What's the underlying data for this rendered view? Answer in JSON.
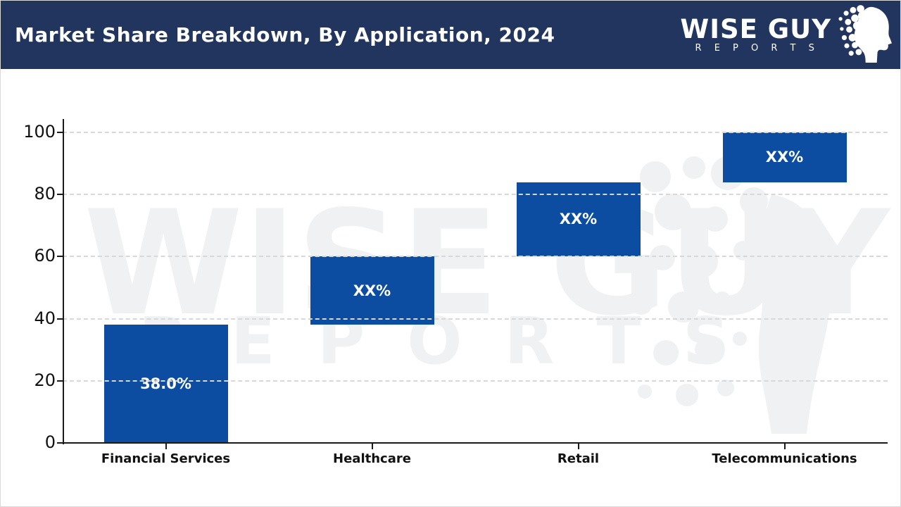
{
  "header": {
    "title": "Market Share Breakdown, By Application, 2024",
    "logo": {
      "line1": "WISE GUY",
      "line2": "R E P O R T S"
    }
  },
  "watermark": {
    "line1": "WISE GUY",
    "line2": "R E P O R T S"
  },
  "chart_data": {
    "type": "bar",
    "subtype": "waterfall-stepped",
    "title": "Market Share Breakdown, By Application, 2024",
    "categories": [
      "Financial Services",
      "Healthcare",
      "Retail",
      "Telecommunications"
    ],
    "segments": [
      {
        "category": "Financial Services",
        "start": 0,
        "end": 38,
        "value": 38.0,
        "label": "38.0%"
      },
      {
        "category": "Healthcare",
        "start": 38,
        "end": 60,
        "value": 22,
        "label": "XX%"
      },
      {
        "category": "Retail",
        "start": 60,
        "end": 84,
        "value": 24,
        "label": "XX%"
      },
      {
        "category": "Telecommunications",
        "start": 84,
        "end": 100,
        "value": 16,
        "label": "XX%"
      }
    ],
    "xlabel": "",
    "ylabel": "",
    "ylim": [
      0,
      100
    ],
    "yticks": [
      0,
      20,
      40,
      60,
      80,
      100
    ],
    "grid": "horizontal-dashed",
    "legend": "none",
    "bar_color": "#0C4DA2",
    "bar_label_color": "#FFFFFF"
  },
  "colors": {
    "header_bg": "#21355E",
    "bar_blue": "#0C4DA2",
    "grid_gray": "#D8D8D8",
    "watermark_gray": "#F0F1F3",
    "axis_black": "#1A1A1A"
  }
}
